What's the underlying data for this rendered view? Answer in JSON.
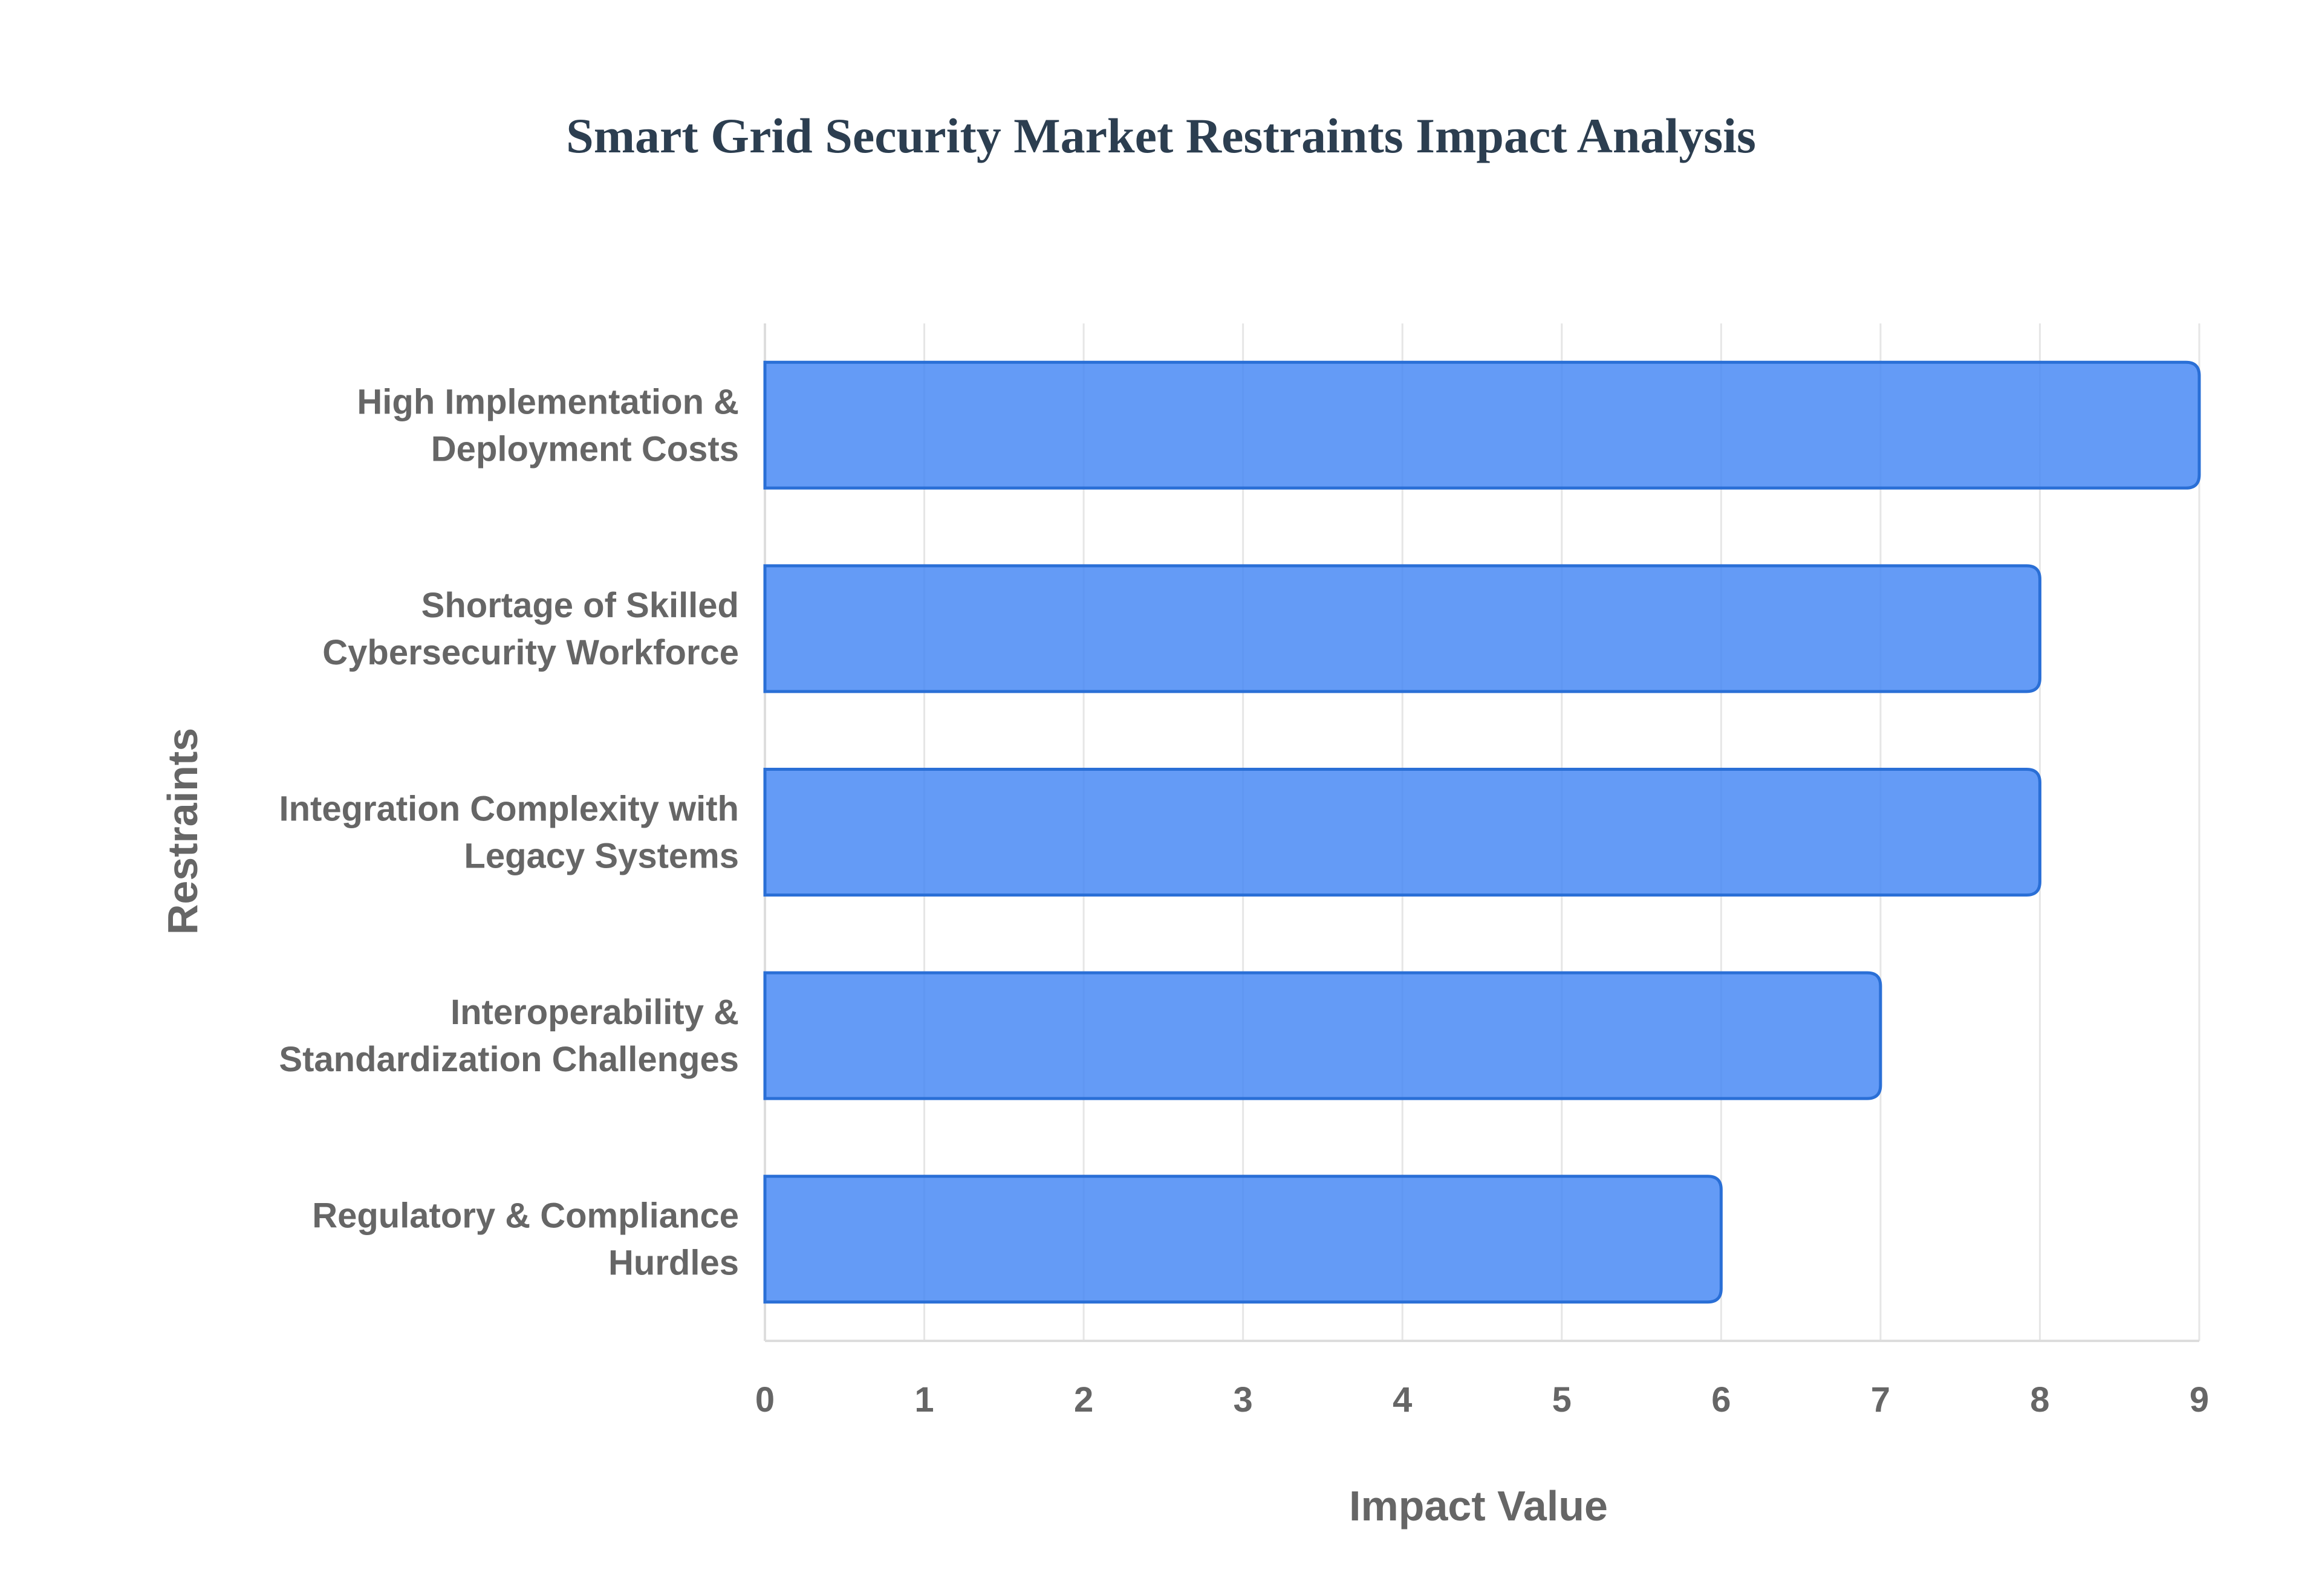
{
  "chart_data": {
    "type": "bar",
    "orientation": "horizontal",
    "title": "Smart Grid Security Market Restraints Impact Analysis",
    "xlabel": "Impact Value",
    "ylabel": "Restraints",
    "categories": [
      "High Implementation & Deployment Costs",
      "Shortage of Skilled Cybersecurity Workforce",
      "Integration Complexity with Legacy Systems",
      "Interoperability & Standardization Challenges",
      "Regulatory & Compliance Hurdles"
    ],
    "category_lines": [
      [
        "High Implementation &",
        "Deployment Costs"
      ],
      [
        "Shortage of Skilled",
        "Cybersecurity Workforce"
      ],
      [
        "Integration Complexity with",
        "Legacy Systems"
      ],
      [
        "Interoperability &",
        "Standardization Challenges"
      ],
      [
        "Regulatory & Compliance",
        "Hurdles"
      ]
    ],
    "values": [
      9,
      8,
      8,
      7,
      6
    ],
    "xlim": [
      0,
      9
    ],
    "xticks": [
      "0",
      "1",
      "2",
      "3",
      "4",
      "5",
      "6",
      "7",
      "8",
      "9"
    ],
    "grid": true,
    "bar_color": "#4285f4",
    "bar_edge_color": "#2a6fd6"
  }
}
